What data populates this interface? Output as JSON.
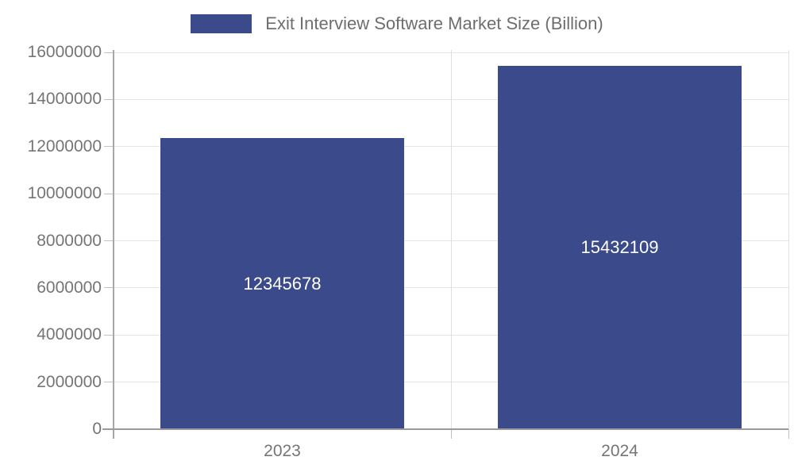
{
  "legend": {
    "label": "Exit Interview Software Market Size (Billion)",
    "swatch_color": "#3a4a8a"
  },
  "chart_data": {
    "type": "bar",
    "title": "Exit Interview Software Market Size (Billion)",
    "categories": [
      "2023",
      "2024"
    ],
    "values": [
      12345678,
      15432109
    ],
    "value_labels": [
      "12345678",
      "15432109"
    ],
    "xlabel": "",
    "ylabel": "",
    "ylim": [
      0,
      16000000
    ],
    "ytick_step": 2000000,
    "ytick_labels": [
      "0",
      "2000000",
      "4000000",
      "6000000",
      "8000000",
      "10000000",
      "12000000",
      "14000000",
      "16000000"
    ],
    "grid": "on",
    "legend_position": "top-center",
    "bar_color": "#3a4a8a",
    "value_label_color": "#ffffff",
    "tick_label_color": "#757575",
    "gridline_color": "#e4e4e4",
    "axis_color": "#9a9a9a"
  }
}
